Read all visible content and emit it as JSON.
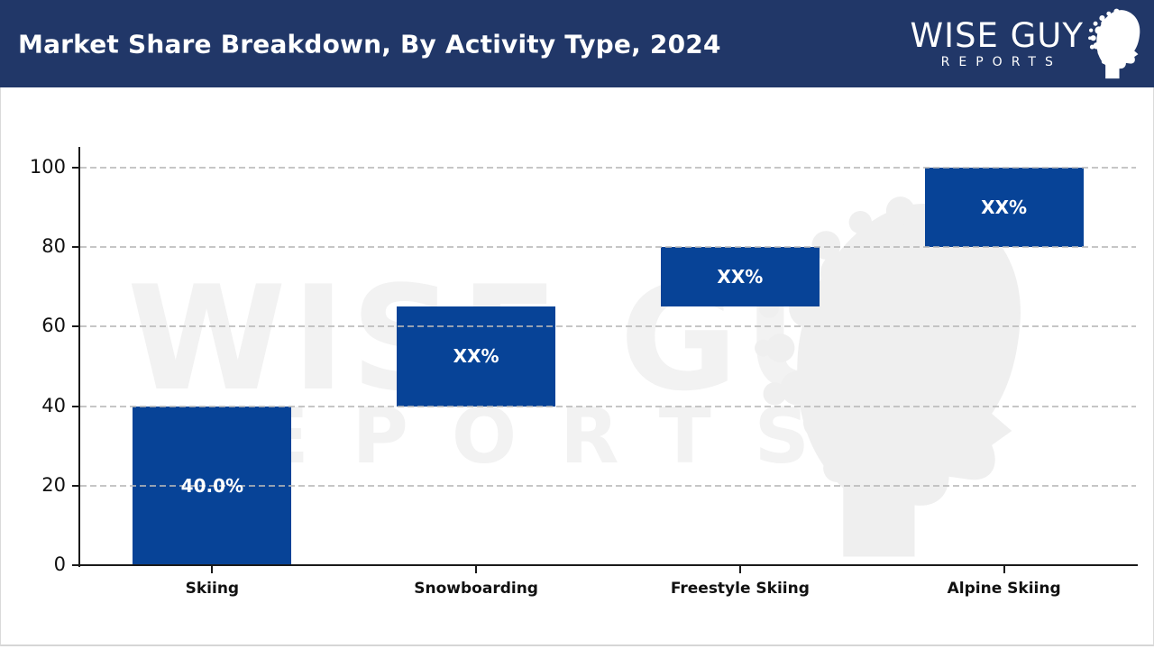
{
  "header": {
    "title": "Market Share Breakdown, By Activity Type, 2024",
    "background_color": "#213768",
    "logo": {
      "line1": "WISE GUY",
      "line2": "REPORTS"
    }
  },
  "watermark": {
    "line1": "WISE GUY",
    "line2": "REPORTS"
  },
  "chart_data": {
    "type": "bar",
    "subtype": "waterfall",
    "title": "Market Share Breakdown, By Activity Type, 2024",
    "categories": [
      "Skiing",
      "Snowboarding",
      "Freestyle Skiing",
      "Alpine Skiing"
    ],
    "series": [
      {
        "name": "Market Share (%)",
        "segments": [
          {
            "category": "Skiing",
            "start": 0,
            "end": 40,
            "label": "40.0%"
          },
          {
            "category": "Snowboarding",
            "start": 40,
            "end": 65,
            "label": "XX%"
          },
          {
            "category": "Freestyle Skiing",
            "start": 65,
            "end": 80,
            "label": "XX%"
          },
          {
            "category": "Alpine Skiing",
            "start": 80,
            "end": 100,
            "label": "XX%"
          }
        ]
      }
    ],
    "xlabel": "",
    "ylabel": "",
    "ylim": [
      0,
      100
    ],
    "yticks": [
      0,
      20,
      40,
      60,
      80,
      100
    ],
    "grid": "horizontal-dashed",
    "legend": "none",
    "bar_color": "#074397",
    "label_color": "#ffffff"
  }
}
